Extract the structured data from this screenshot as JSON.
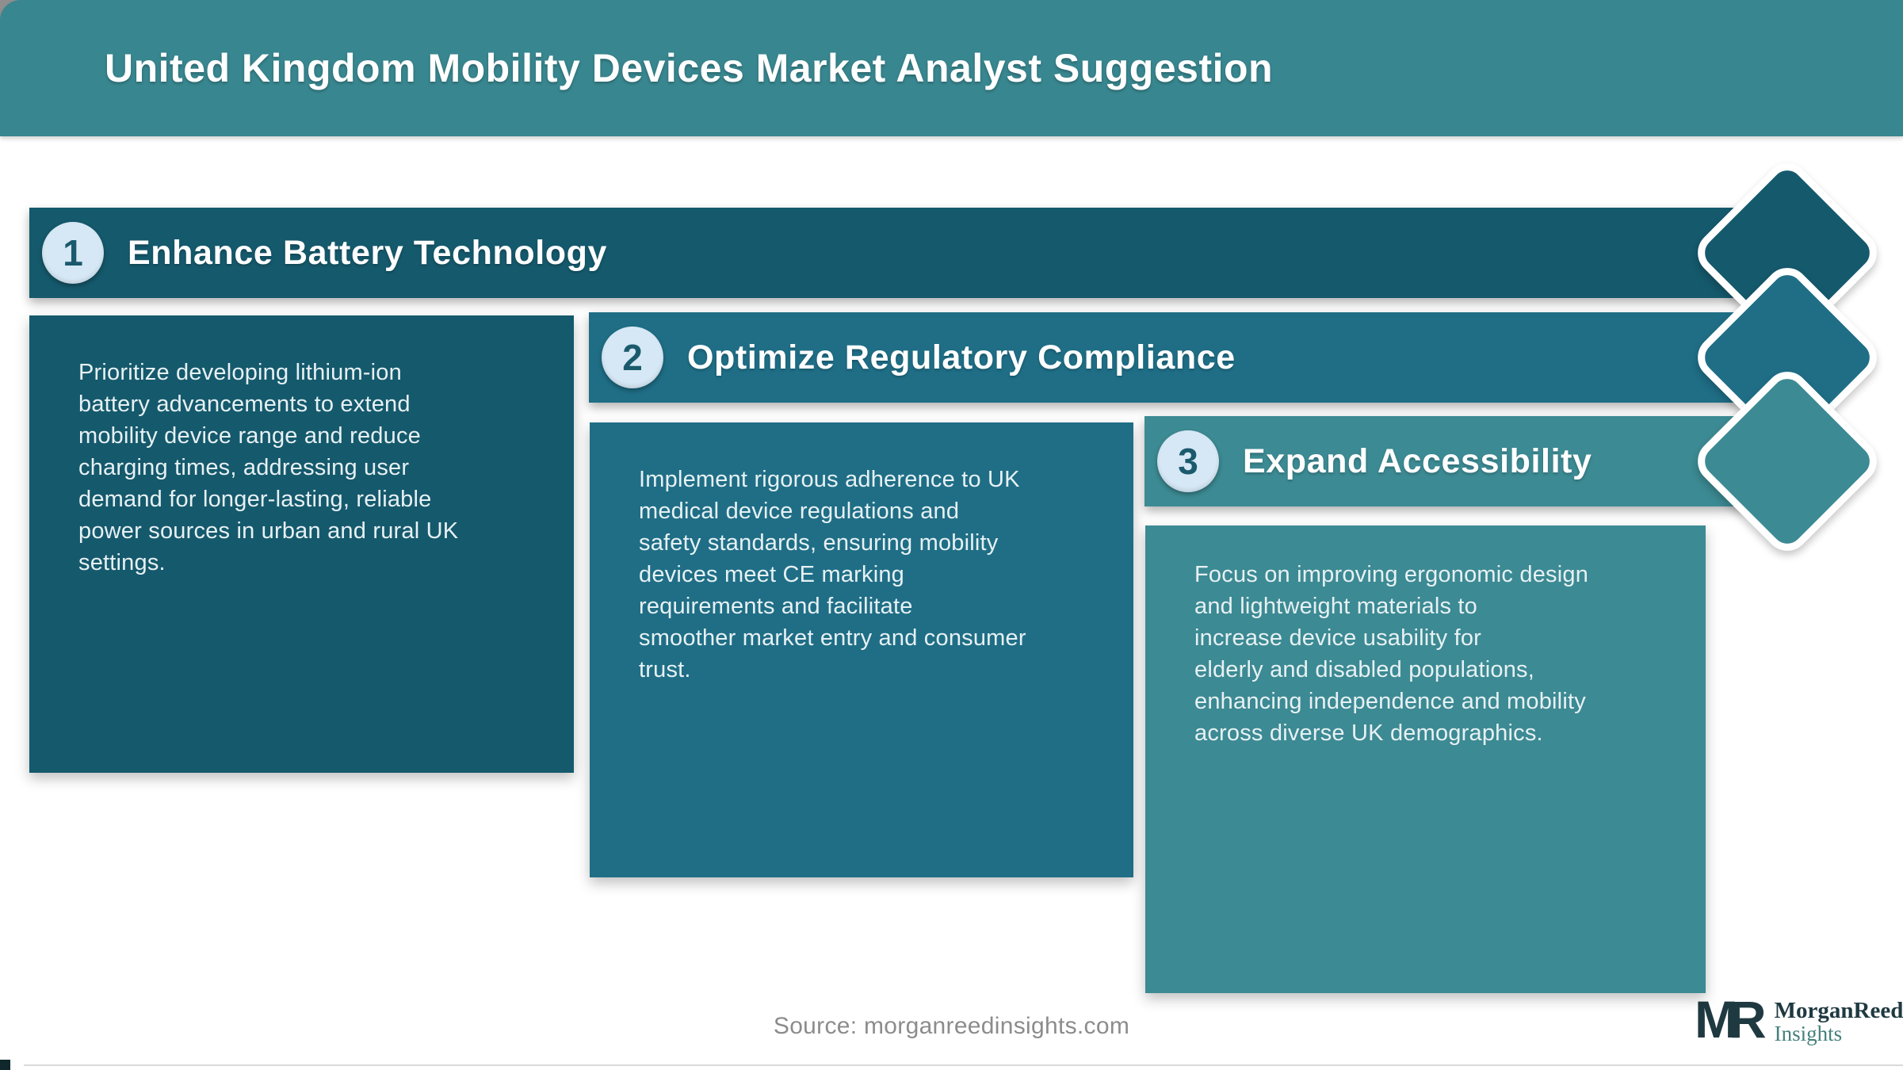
{
  "header": {
    "title": "United Kingdom Mobility Devices Market Analyst Suggestion",
    "background": "#38868F",
    "text_color": "#FFFFFF"
  },
  "steps": [
    {
      "number": "1",
      "title": "Enhance Battery Technology",
      "color": "#15596C",
      "description": "Prioritize developing lithium-ion\nbattery advancements to extend\nmobility device range and reduce\ncharging times, addressing user\ndemand for longer-lasting, reliable\npower sources in urban and rural UK\nsettings."
    },
    {
      "number": "2",
      "title": "Optimize Regulatory Compliance",
      "color": "#1F6E86",
      "description": "Implement rigorous adherence to UK\nmedical device regulations and\nsafety standards, ensuring mobility\ndevices meet CE marking\nrequirements and facilitate\nsmoother market entry and consumer\ntrust."
    },
    {
      "number": "3",
      "title": "Expand Accessibility",
      "color": "#3C8A93",
      "description": "Focus on improving ergonomic design\nand lightweight materials to\nincrease device usability for\nelderly and disabled populations,\nenhancing independence and mobility\nacross diverse UK demographics."
    }
  ],
  "badge": {
    "background": "#D6E8F5",
    "number_color": "#1B5A6D"
  },
  "footer": {
    "source": "Source: morganreedinsights.com",
    "source_color": "#8C8C8C"
  },
  "logo": {
    "monogram": "MR",
    "monogram_color": "#1F3940",
    "name_part1": "Morgan",
    "name_part2": "Reed",
    "name_color": "#1F3940",
    "subtitle": "Insights",
    "subtitle_color": "#44807C"
  }
}
